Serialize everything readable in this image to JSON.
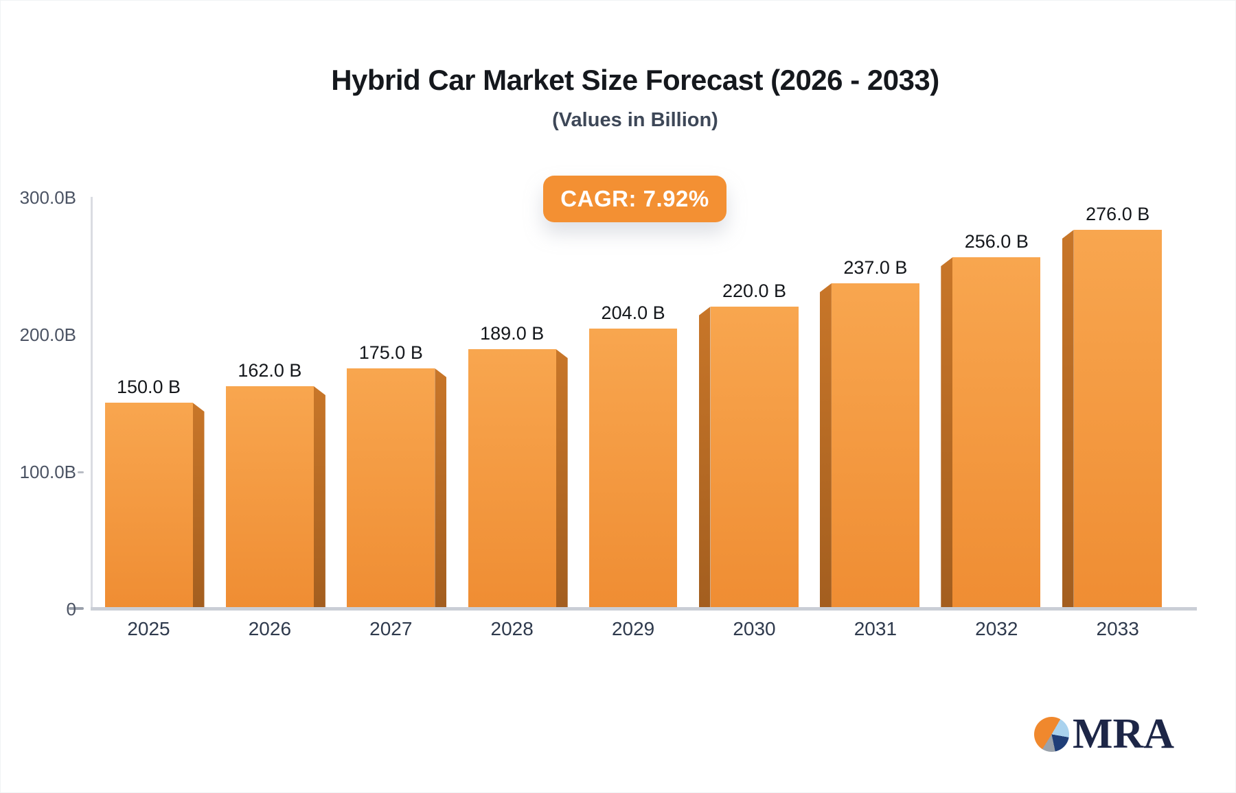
{
  "header": {
    "title": "Hybrid Car Market Size Forecast (2026 - 2033)",
    "subtitle": "(Values in Billion)"
  },
  "badge": {
    "label": "CAGR: 7.92%"
  },
  "logo": {
    "text": "MRA",
    "icon": "pie-chart-icon"
  },
  "chart_data": {
    "type": "bar",
    "title": "Hybrid Car Market Size Forecast (2026 - 2033)",
    "subtitle": "(Values in Billion)",
    "cagr_label": "CAGR: 7.92%",
    "categories": [
      "2025",
      "2026",
      "2027",
      "2028",
      "2029",
      "2030",
      "2031",
      "2032",
      "2033"
    ],
    "values": [
      150,
      162,
      175,
      189,
      204,
      220,
      237,
      256,
      276
    ],
    "bar_labels": [
      "150.0 B",
      "162.0 B",
      "175.0 B",
      "189.0 B",
      "204.0 B",
      "220.0 B",
      "237.0 B",
      "256.0 B",
      "276.0 B"
    ],
    "y_axis": {
      "ticks": [
        {
          "label": "300.0B",
          "value": 300
        },
        {
          "label": "200.0B",
          "value": 200
        },
        {
          "label": "100.0B",
          "value": 100
        },
        {
          "label": "0",
          "value": 0
        }
      ]
    },
    "ylim": [
      0,
      300
    ],
    "xlabel": "",
    "ylabel": "",
    "grid": false,
    "legend": false
  },
  "colors": {
    "badge_bg": "#f39033",
    "bar_top": "#f8a64f",
    "bar_bottom": "#ef8d33",
    "bar_side": "#bd6e26",
    "axis_line": "#dadce2",
    "baseline": "#caced6",
    "title_text": "#15181d",
    "subtitle_text": "#3d4757",
    "axis_label": "#4b5363",
    "category_text": "#2f3a4d",
    "value_text": "#14171b",
    "logo_orange": "#f0882d",
    "logo_blue": "#a9d2ee",
    "logo_navy": "#1f3e78",
    "logo_gray": "#9aa2ab",
    "logo_navy_text": "#1d2647"
  }
}
